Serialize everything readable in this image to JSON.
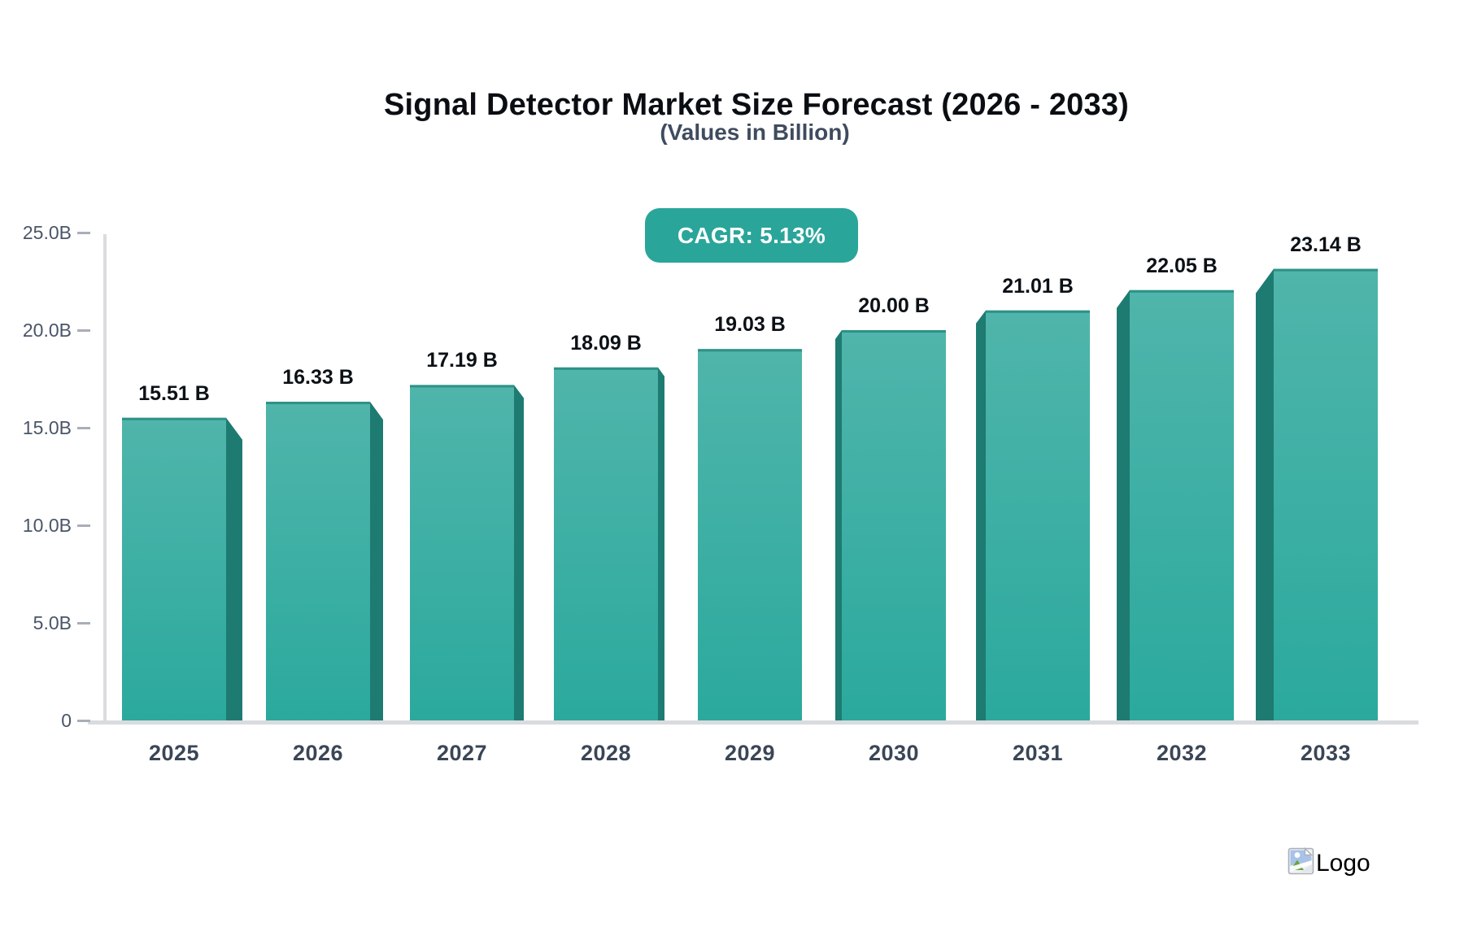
{
  "chart_data": {
    "type": "bar",
    "title": "Signal Detector Market Size Forecast (2026 - 2033)",
    "subtitle": "(Values in Billion)",
    "cagr_label": "CAGR: 5.13%",
    "categories": [
      "2025",
      "2026",
      "2027",
      "2028",
      "2029",
      "2030",
      "2031",
      "2032",
      "2033"
    ],
    "values": [
      15.51,
      16.33,
      17.19,
      18.09,
      19.03,
      20.0,
      21.01,
      22.05,
      23.14
    ],
    "value_labels": [
      "15.51 B",
      "16.33 B",
      "17.19 B",
      "18.09 B",
      "19.03 B",
      "20.00 B",
      "21.01 B",
      "22.05 B",
      "23.14 B"
    ],
    "y_ticks": [
      {
        "value": 0,
        "label": "0"
      },
      {
        "value": 5,
        "label": "5.0B"
      },
      {
        "value": 10,
        "label": "10.0B"
      },
      {
        "value": 15,
        "label": "15.0B"
      },
      {
        "value": 20,
        "label": "20.0B"
      },
      {
        "value": 25,
        "label": "25.0B"
      }
    ],
    "ylim": [
      0,
      25
    ],
    "unit": "B",
    "grid": false,
    "legend": null,
    "colors": {
      "bar_front_top": "#50b5ab",
      "bar_front_bottom": "#2ba99d",
      "bar_top_edge": "#2e9187",
      "bar_side": "#1e7b72",
      "badge_bg": "#2aa59a",
      "axis_line": "#d9dbdf",
      "tick_dash": "#a9aeb7",
      "y_label": "#4a5568",
      "year_label": "#3a4656",
      "value_label": "#0c1116",
      "title": "#0a0e13",
      "subtitle": "#3f4b5e"
    }
  },
  "footer": {
    "logo_alt": "Logo"
  }
}
